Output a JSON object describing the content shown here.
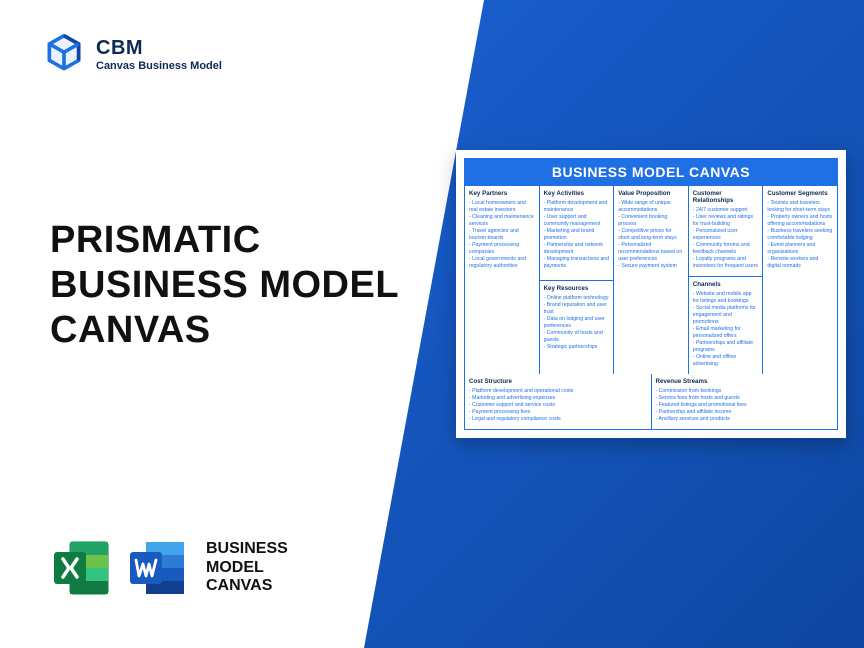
{
  "logo": {
    "title": "CBM",
    "subtitle": "Canvas Business Model"
  },
  "headline": {
    "l1": "PRISMATIC",
    "l2": "BUSINESS MODEL",
    "l3": "CANVAS"
  },
  "appLabel": {
    "l1": "BUSINESS",
    "l2": "MODEL",
    "l3": "CANVAS"
  },
  "canvas": {
    "title": "BUSINESS MODEL CANVAS",
    "keyPartners": {
      "heading": "Key Partners",
      "items": [
        "Local homeowners and real estate investors",
        "Cleaning and maintenance services",
        "Travel agencies and tourism boards",
        "Payment processing companies",
        "Local governments and regulatory authorities"
      ]
    },
    "keyActivities": {
      "heading": "Key Activities",
      "items": [
        "Platform development and maintenance",
        "User support and community management",
        "Marketing and brand promotion",
        "Partnership and network development",
        "Managing transactions and payments"
      ]
    },
    "keyResources": {
      "heading": "Key Resources",
      "items": [
        "Online platform technology",
        "Brand reputation and user trust",
        "Data on lodging and user preferences",
        "Community of hosts and guests",
        "Strategic partnerships"
      ]
    },
    "valueProposition": {
      "heading": "Value Proposition",
      "items": [
        "Wide range of unique accommodations",
        "Convenient booking process",
        "Competitive prices for short and long-term stays",
        "Personalized recommendations based on user preferences",
        "Secure payment system"
      ]
    },
    "customerRelationships": {
      "heading": "Customer Relationships",
      "items": [
        "24/7 customer support",
        "User reviews and ratings for trust-building",
        "Personalized user experiences",
        "Community forums and feedback channels",
        "Loyalty programs and incentives for frequent users"
      ]
    },
    "channels": {
      "heading": "Channels",
      "items": [
        "Website and mobile app for listings and bookings",
        "Social media platforms for engagement and promotions",
        "Email marketing for personalized offers",
        "Partnerships and affiliate programs",
        "Online and offline advertising"
      ]
    },
    "customerSegments": {
      "heading": "Customer Segments",
      "items": [
        "Tourists and travelers looking for short-term stays",
        "Property owners and hosts offering accommodations",
        "Business travelers seeking comfortable lodging",
        "Event planners and organizations",
        "Remote workers and digital nomads"
      ]
    },
    "costStructure": {
      "heading": "Cost Structure",
      "items": [
        "Platform development and operational costs",
        "Marketing and advertising expenses",
        "Customer support and service costs",
        "Payment processing fees",
        "Legal and regulatory compliance costs"
      ]
    },
    "revenueStreams": {
      "heading": "Revenue Streams",
      "items": [
        "Commission from bookings",
        "Service fees from hosts and guests",
        "Featured listings and promotional fees",
        "Partnership and affiliate income",
        "Ancillary services and products"
      ]
    }
  },
  "colors": {
    "brandBlue": "#1f6fe5",
    "darkBlue": "#0d47a1",
    "excel": "#107c41",
    "word": "#185abd"
  }
}
